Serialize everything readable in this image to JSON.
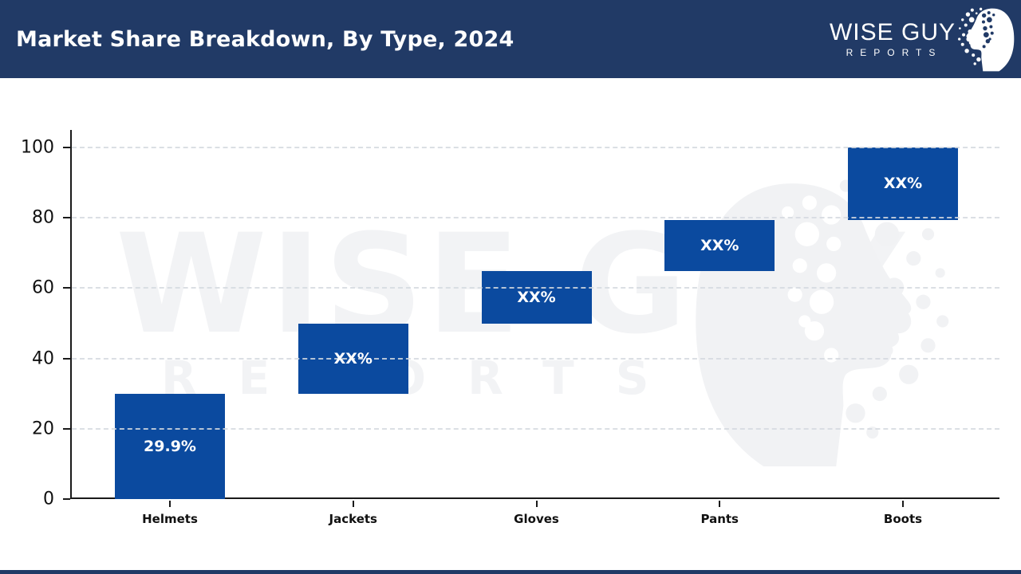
{
  "header": {
    "title": "Market Share Breakdown, By Type, 2024",
    "logo": {
      "line1": "WISE GUY",
      "line2": "REPORTS"
    }
  },
  "watermark": {
    "line1": "WISE GUY",
    "line2": "REPORTS"
  },
  "colors": {
    "header_bg": "#213A66",
    "bar_fill": "#0B4A9F",
    "bar_label_text": "#FFFFFF",
    "axis": "#1A1A1A",
    "gridline": "#D5D9DF",
    "watermark": "#F2F3F5"
  },
  "chart_data": {
    "type": "bar",
    "subtype": "waterfall",
    "title": "Market Share Breakdown, By Type, 2024",
    "xlabel": "",
    "ylabel": "",
    "categories": [
      "Helmets",
      "Jackets",
      "Gloves",
      "Pants",
      "Boots"
    ],
    "segments": [
      {
        "category": "Helmets",
        "start": 0,
        "end": 29.9,
        "label": "29.9%"
      },
      {
        "category": "Jackets",
        "start": 29.9,
        "end": 49.9,
        "label": "XX%"
      },
      {
        "category": "Gloves",
        "start": 49.9,
        "end": 64.9,
        "label": "XX%"
      },
      {
        "category": "Pants",
        "start": 64.9,
        "end": 79.4,
        "label": "XX%"
      },
      {
        "category": "Boots",
        "start": 79.4,
        "end": 100,
        "label": "XX%"
      }
    ],
    "yticks": [
      0,
      20,
      40,
      60,
      80,
      100
    ],
    "ylim": [
      0,
      105
    ],
    "grid": "horizontal-dashed",
    "legend": "none"
  }
}
